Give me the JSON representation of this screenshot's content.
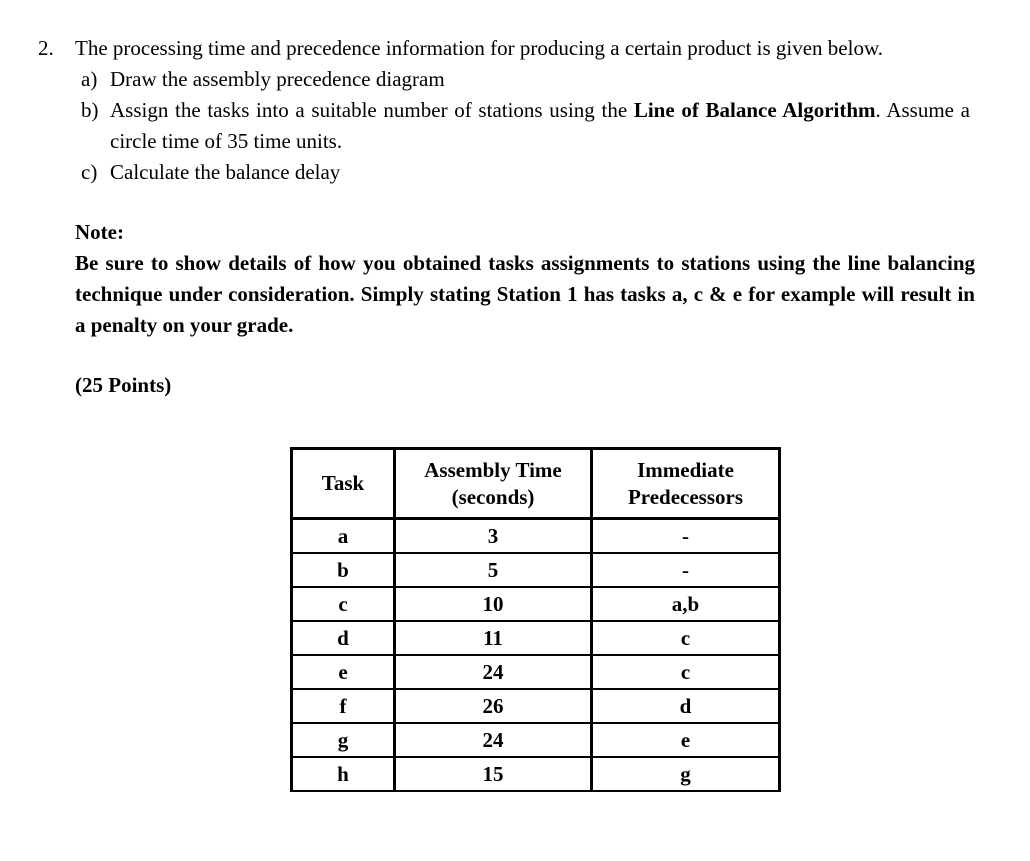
{
  "problem": {
    "number": "2.",
    "intro": "The processing time and precedence information for producing a certain product is given below.",
    "items": [
      {
        "label": "a)",
        "text": "Draw the assembly precedence diagram"
      },
      {
        "label": "b)",
        "text_pre": "Assign the tasks into a suitable number of stations using the ",
        "text_bold": "Line of Balance Algorithm",
        "text_post": ". Assume a circle time of 35 time units."
      },
      {
        "label": "c)",
        "text": "Calculate the balance delay"
      }
    ]
  },
  "note": {
    "title": "Note:",
    "body": "Be sure to show details of how you obtained tasks assignments to stations using the line balancing technique under consideration. Simply stating Station 1 has tasks a, c & e for example will result in a penalty on your grade.",
    "points": "(25 Points)"
  },
  "table": {
    "headers": [
      "Task",
      "Assembly Time\n(seconds)",
      "Immediate\nPredecessors"
    ],
    "rows": [
      {
        "task": "a",
        "time": "3",
        "pred": "-"
      },
      {
        "task": "b",
        "time": "5",
        "pred": "-"
      },
      {
        "task": "c",
        "time": "10",
        "pred": "a,b"
      },
      {
        "task": "d",
        "time": "11",
        "pred": "c"
      },
      {
        "task": "e",
        "time": "24",
        "pred": "c"
      },
      {
        "task": "f",
        "time": "26",
        "pred": "d"
      },
      {
        "task": "g",
        "time": "24",
        "pred": "e"
      },
      {
        "task": "h",
        "time": "15",
        "pred": "g"
      }
    ]
  }
}
